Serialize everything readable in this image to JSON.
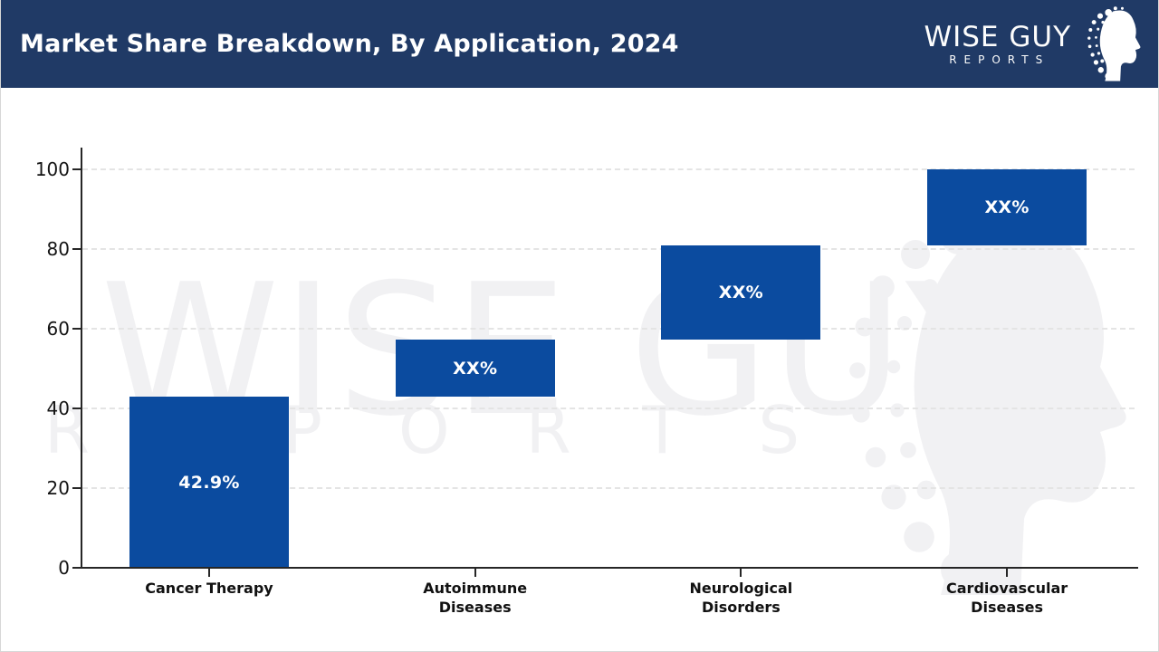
{
  "header": {
    "title": "Market Share Breakdown, By Application, 2024",
    "logo": {
      "line1": "WISE GUY",
      "line2": "REPORTS"
    }
  },
  "watermark": {
    "line1": "WISE GUY",
    "line2": "REPORTS"
  },
  "colors": {
    "header_bg": "#203A66",
    "bar_blue": "#0B4B9F",
    "watermark_gray": "#F1F1F3",
    "gridline": "#E4E4E4",
    "axis": "#262626"
  },
  "chart_data": {
    "type": "bar",
    "subtype": "waterfall-floating-bars",
    "title": "Market Share Breakdown, By Application, 2024",
    "xlabel": "",
    "ylabel": "",
    "categories": [
      "Cancer Therapy",
      "Autoimmune Diseases",
      "Neurological Disorders",
      "Cardiovascular Diseases"
    ],
    "segments": [
      {
        "category": "Cancer Therapy",
        "start": 0,
        "end": 42.9,
        "label": "42.9%"
      },
      {
        "category": "Autoimmune Diseases",
        "start": 42.9,
        "end": 57.2,
        "label": "XX%"
      },
      {
        "category": "Neurological Disorders",
        "start": 57.2,
        "end": 81.0,
        "label": "XX%"
      },
      {
        "category": "Cardiovascular Diseases",
        "start": 81.0,
        "end": 100.0,
        "label": "XX%"
      }
    ],
    "yticks": [
      0,
      20,
      40,
      60,
      80,
      100
    ],
    "ylim": [
      0,
      105.5
    ],
    "grid": "horizontal-dashed",
    "legend": "none"
  }
}
